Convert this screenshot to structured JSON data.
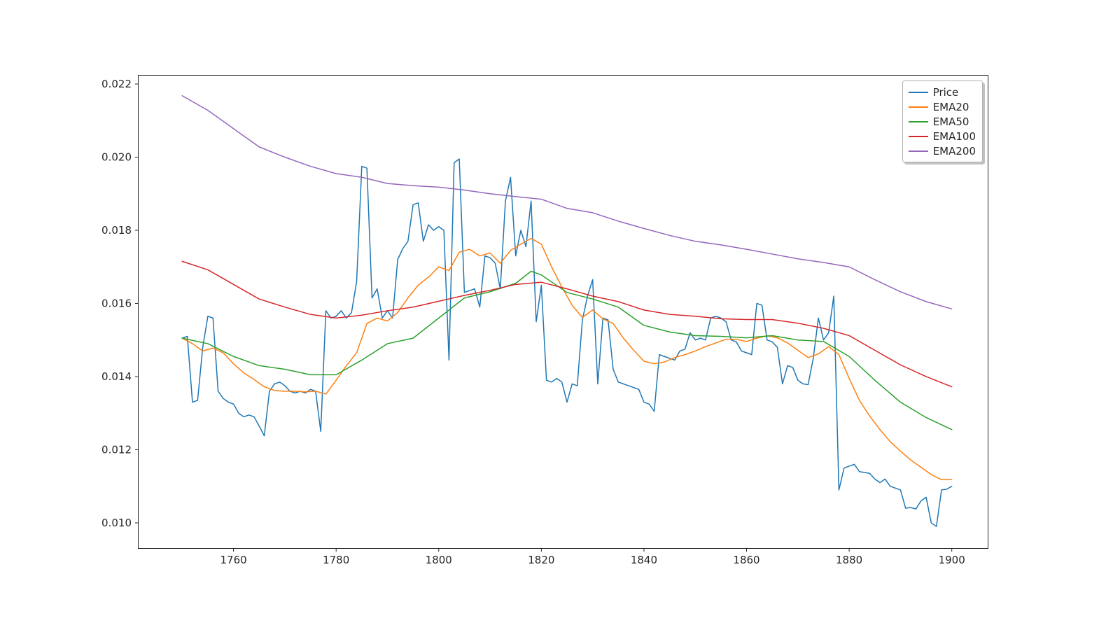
{
  "figure": {
    "background": "#ffffff",
    "text_color": "#262626"
  },
  "chart_data": {
    "type": "line",
    "title": "",
    "xlabel": "",
    "ylabel": "",
    "grid": false,
    "xlim": [
      1741.5,
      1907.0
    ],
    "ylim": [
      0.00931,
      0.02223
    ],
    "xticks": {
      "values": [
        1760,
        1780,
        1800,
        1820,
        1840,
        1860,
        1880,
        1900
      ],
      "labels": [
        "1760",
        "1780",
        "1800",
        "1820",
        "1840",
        "1860",
        "1880",
        "1900"
      ]
    },
    "yticks": {
      "values": [
        0.01,
        0.012,
        0.014,
        0.016,
        0.018,
        0.02,
        0.022
      ],
      "labels": [
        "0.010",
        "0.012",
        "0.014",
        "0.016",
        "0.018",
        "0.020",
        "0.022"
      ]
    },
    "legend": {
      "position": "upper-right",
      "entries": [
        "Price",
        "EMA20",
        "EMA50",
        "EMA100",
        "EMA200"
      ]
    },
    "series": [
      {
        "name": "Price",
        "color": "#1f77b4",
        "linewidth": 1.5,
        "x": [
          1750,
          1751,
          1752,
          1753,
          1754,
          1755,
          1756,
          1757,
          1758,
          1759,
          1760,
          1761,
          1762,
          1763,
          1764,
          1765,
          1766,
          1767,
          1768,
          1769,
          1770,
          1771,
          1772,
          1773,
          1774,
          1775,
          1776,
          1777,
          1778,
          1779,
          1780,
          1781,
          1782,
          1783,
          1784,
          1785,
          1786,
          1787,
          1788,
          1789,
          1790,
          1791,
          1792,
          1793,
          1794,
          1795,
          1796,
          1797,
          1798,
          1799,
          1800,
          1801,
          1802,
          1803,
          1804,
          1805,
          1806,
          1807,
          1808,
          1809,
          1810,
          1811,
          1812,
          1813,
          1814,
          1815,
          1816,
          1817,
          1818,
          1819,
          1820,
          1821,
          1822,
          1823,
          1824,
          1825,
          1826,
          1827,
          1828,
          1829,
          1830,
          1831,
          1832,
          1833,
          1834,
          1835,
          1836,
          1837,
          1838,
          1839,
          1840,
          1841,
          1842,
          1843,
          1844,
          1845,
          1846,
          1847,
          1848,
          1849,
          1850,
          1851,
          1852,
          1853,
          1854,
          1855,
          1856,
          1857,
          1858,
          1859,
          1860,
          1861,
          1862,
          1863,
          1864,
          1865,
          1866,
          1867,
          1868,
          1869,
          1870,
          1871,
          1872,
          1873,
          1874,
          1875,
          1876,
          1877,
          1878,
          1879,
          1880,
          1881,
          1882,
          1883,
          1884,
          1885,
          1886,
          1887,
          1888,
          1889,
          1890,
          1891,
          1892,
          1893,
          1894,
          1895,
          1896,
          1897,
          1898,
          1899,
          1900
        ],
        "y": [
          0.01505,
          0.0151,
          0.0133,
          0.01335,
          0.0148,
          0.01565,
          0.0156,
          0.0136,
          0.0134,
          0.0133,
          0.01325,
          0.013,
          0.0129,
          0.01295,
          0.0129,
          0.01265,
          0.01238,
          0.0136,
          0.0138,
          0.01385,
          0.01375,
          0.0136,
          0.01355,
          0.0136,
          0.01355,
          0.01365,
          0.0136,
          0.0125,
          0.0158,
          0.0156,
          0.01565,
          0.0158,
          0.0156,
          0.01575,
          0.0166,
          0.01975,
          0.0197,
          0.01615,
          0.0164,
          0.0156,
          0.0158,
          0.0156,
          0.0172,
          0.0175,
          0.0177,
          0.0187,
          0.01875,
          0.0177,
          0.01815,
          0.018,
          0.0181,
          0.018,
          0.01445,
          0.01985,
          0.01995,
          0.0163,
          0.01635,
          0.0164,
          0.0159,
          0.0173,
          0.01725,
          0.0171,
          0.0164,
          0.0188,
          0.01945,
          0.0173,
          0.018,
          0.01755,
          0.0188,
          0.0155,
          0.0165,
          0.0139,
          0.01385,
          0.01395,
          0.01385,
          0.0133,
          0.0138,
          0.01375,
          0.01555,
          0.0162,
          0.01665,
          0.0138,
          0.0156,
          0.01555,
          0.0142,
          0.01385,
          0.0138,
          0.01375,
          0.0137,
          0.01365,
          0.0133,
          0.01325,
          0.01305,
          0.0146,
          0.01455,
          0.0145,
          0.01445,
          0.0147,
          0.01475,
          0.0152,
          0.015,
          0.01505,
          0.015,
          0.0156,
          0.01565,
          0.0156,
          0.0155,
          0.015,
          0.01495,
          0.0147,
          0.01465,
          0.0146,
          0.016,
          0.01595,
          0.015,
          0.01495,
          0.0148,
          0.0138,
          0.0143,
          0.01425,
          0.0139,
          0.0138,
          0.01378,
          0.0145,
          0.0156,
          0.015,
          0.0152,
          0.0162,
          0.0109,
          0.0115,
          0.01155,
          0.0116,
          0.0114,
          0.01138,
          0.01135,
          0.0112,
          0.0111,
          0.0112,
          0.011,
          0.01095,
          0.0109,
          0.0104,
          0.01042,
          0.01038,
          0.0106,
          0.0107,
          0.01,
          0.0099,
          0.0109,
          0.01092,
          0.011
        ]
      },
      {
        "name": "EMA20",
        "color": "#ff7f0e",
        "linewidth": 1.5,
        "x": [
          1750,
          1752,
          1754,
          1756,
          1758,
          1760,
          1762,
          1764,
          1766,
          1768,
          1770,
          1772,
          1774,
          1776,
          1778,
          1780,
          1782,
          1784,
          1786,
          1788,
          1790,
          1792,
          1794,
          1796,
          1798,
          1800,
          1802,
          1804,
          1806,
          1808,
          1810,
          1812,
          1814,
          1816,
          1818,
          1820,
          1822,
          1824,
          1826,
          1828,
          1830,
          1832,
          1834,
          1836,
          1838,
          1840,
          1842,
          1844,
          1846,
          1848,
          1850,
          1852,
          1854,
          1856,
          1858,
          1860,
          1862,
          1864,
          1866,
          1868,
          1870,
          1872,
          1874,
          1876,
          1878,
          1880,
          1882,
          1884,
          1886,
          1888,
          1890,
          1892,
          1894,
          1896,
          1898,
          1900
        ],
        "y": [
          0.01505,
          0.0149,
          0.0147,
          0.01478,
          0.01465,
          0.01435,
          0.0141,
          0.01392,
          0.01372,
          0.01362,
          0.0136,
          0.0136,
          0.01358,
          0.0136,
          0.01352,
          0.0139,
          0.0143,
          0.01465,
          0.01545,
          0.0156,
          0.01552,
          0.01575,
          0.01615,
          0.0165,
          0.01672,
          0.017,
          0.0169,
          0.0174,
          0.01748,
          0.0173,
          0.01738,
          0.0171,
          0.01745,
          0.01762,
          0.01778,
          0.01762,
          0.017,
          0.01645,
          0.01595,
          0.01562,
          0.01582,
          0.01558,
          0.01545,
          0.01505,
          0.01472,
          0.01442,
          0.01435,
          0.0144,
          0.01452,
          0.0146,
          0.0147,
          0.01482,
          0.01492,
          0.01502,
          0.01502,
          0.01496,
          0.01505,
          0.01512,
          0.01506,
          0.01492,
          0.01472,
          0.01452,
          0.01462,
          0.01482,
          0.0146,
          0.01395,
          0.01335,
          0.01292,
          0.01255,
          0.01222,
          0.01196,
          0.01172,
          0.01152,
          0.01132,
          0.01118,
          0.01118
        ]
      },
      {
        "name": "EMA50",
        "color": "#2ca02c",
        "linewidth": 1.5,
        "x": [
          1750,
          1755,
          1760,
          1765,
          1770,
          1775,
          1780,
          1785,
          1790,
          1795,
          1800,
          1805,
          1810,
          1815,
          1818,
          1820,
          1825,
          1830,
          1835,
          1840,
          1845,
          1850,
          1855,
          1860,
          1865,
          1870,
          1875,
          1880,
          1885,
          1890,
          1895,
          1900
        ],
        "y": [
          0.01505,
          0.0149,
          0.01455,
          0.0143,
          0.0142,
          0.01405,
          0.01405,
          0.01445,
          0.0149,
          0.01505,
          0.0156,
          0.01615,
          0.01632,
          0.01655,
          0.01688,
          0.01678,
          0.0163,
          0.01612,
          0.0159,
          0.0154,
          0.01522,
          0.01512,
          0.0151,
          0.01506,
          0.01512,
          0.015,
          0.01496,
          0.01455,
          0.0139,
          0.0133,
          0.01288,
          0.01255
        ]
      },
      {
        "name": "EMA100",
        "color": "#d62728",
        "linewidth": 1.5,
        "x": [
          1750,
          1755,
          1760,
          1765,
          1770,
          1775,
          1780,
          1785,
          1790,
          1795,
          1800,
          1805,
          1810,
          1815,
          1820,
          1825,
          1830,
          1835,
          1840,
          1845,
          1850,
          1855,
          1860,
          1865,
          1870,
          1875,
          1880,
          1885,
          1890,
          1895,
          1900
        ],
        "y": [
          0.01715,
          0.01692,
          0.01652,
          0.01612,
          0.0159,
          0.0157,
          0.0156,
          0.01568,
          0.0158,
          0.0159,
          0.01606,
          0.01622,
          0.01636,
          0.01652,
          0.01658,
          0.0164,
          0.0162,
          0.01605,
          0.01582,
          0.0157,
          0.01565,
          0.01558,
          0.01556,
          0.01556,
          0.01546,
          0.01532,
          0.01512,
          0.01472,
          0.01432,
          0.014,
          0.01372
        ]
      },
      {
        "name": "EMA200",
        "color": "#9467bd",
        "linewidth": 1.5,
        "x": [
          1750,
          1755,
          1760,
          1765,
          1770,
          1775,
          1780,
          1785,
          1790,
          1795,
          1800,
          1805,
          1810,
          1815,
          1820,
          1825,
          1830,
          1835,
          1840,
          1845,
          1850,
          1855,
          1860,
          1865,
          1870,
          1875,
          1880,
          1885,
          1890,
          1895,
          1900
        ],
        "y": [
          0.02168,
          0.02128,
          0.02078,
          0.02028,
          0.02,
          0.01975,
          0.01955,
          0.01945,
          0.01928,
          0.01922,
          0.01918,
          0.0191,
          0.019,
          0.01892,
          0.01885,
          0.0186,
          0.01848,
          0.01825,
          0.01805,
          0.01786,
          0.0177,
          0.0176,
          0.01748,
          0.01735,
          0.01722,
          0.01712,
          0.017,
          0.01665,
          0.01632,
          0.01605,
          0.01585
        ]
      }
    ]
  }
}
